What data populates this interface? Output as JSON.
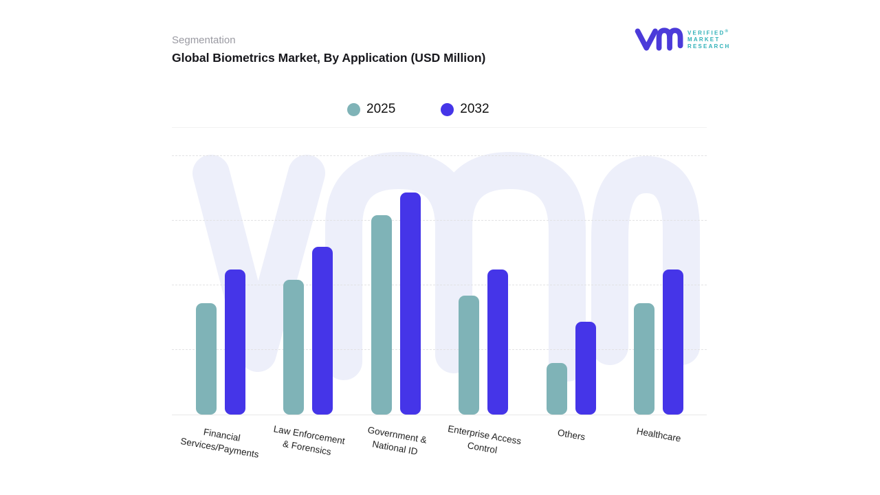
{
  "header": {
    "eyebrow": "Segmentation",
    "title": "Global Biometrics Market, By Application (USD Million)"
  },
  "brand": {
    "mark": "vm-logo",
    "mark_color": "#4b3ad9",
    "text_color": "#2fb1b8",
    "line1": "VERIFIED",
    "registered": "®",
    "line2": "MARKET",
    "line3": "RESEARCH"
  },
  "legend": [
    {
      "label": "2025",
      "color": "#7fb3b7"
    },
    {
      "label": "2032",
      "color": "#4535e8"
    }
  ],
  "chart_data": {
    "type": "bar",
    "title": "Global Biometrics Market, By Application (USD Million)",
    "categories": [
      "Financial Services/Payments",
      "Law Enforcement & Forensics",
      "Government & National ID",
      "Enterprise Access Control",
      "Others",
      "Healthcare"
    ],
    "category_label_lines": [
      [
        "Financial",
        "Services/Payments"
      ],
      [
        "Law Enforcement",
        "& Forensics"
      ],
      [
        "Government &",
        "National ID"
      ],
      [
        "Enterprise Access",
        "Control"
      ],
      [
        "Others"
      ],
      [
        "Healthcare"
      ]
    ],
    "series": [
      {
        "name": "2025",
        "color": "#7fb3b7",
        "values": [
          43,
          52,
          77,
          46,
          20,
          43
        ]
      },
      {
        "name": "2032",
        "color": "#4535e8",
        "values": [
          56,
          65,
          86,
          56,
          36,
          56
        ]
      }
    ],
    "xlabel": "",
    "ylabel": "",
    "ylim": [
      0,
      100
    ],
    "y_axis_labels_visible": false,
    "grid": "dashed horizontal lines",
    "legend_position": "top-center",
    "watermark": "vmr-logo-light",
    "watermark_color": "#edeffa"
  }
}
